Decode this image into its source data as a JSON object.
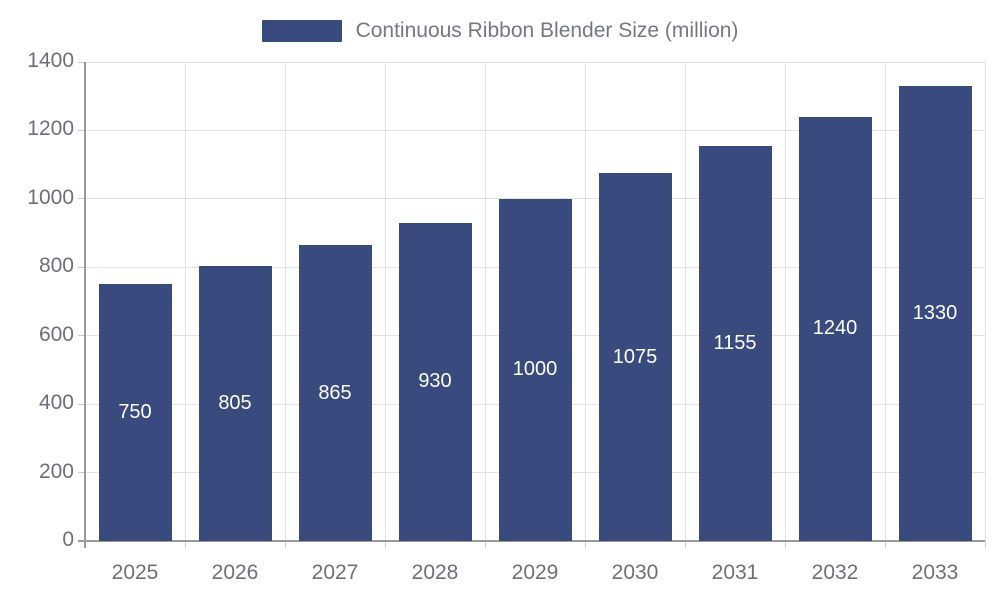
{
  "legend": {
    "label": "Continuous Ribbon Blender Size (million)"
  },
  "chart_data": {
    "type": "bar",
    "title": "",
    "series_name": "Continuous Ribbon Blender Size (million)",
    "categories": [
      "2025",
      "2026",
      "2027",
      "2028",
      "2029",
      "2030",
      "2031",
      "2032",
      "2033"
    ],
    "values": [
      750,
      805,
      865,
      930,
      1000,
      1075,
      1155,
      1240,
      1330
    ],
    "xlabel": "",
    "ylabel": "",
    "ylim": [
      0,
      1400
    ],
    "yticks": [
      0,
      200,
      400,
      600,
      800,
      1000,
      1200,
      1400
    ],
    "grid": true,
    "legend_position": "top",
    "bar_label_position": "inside-center",
    "colors": {
      "bar": "#394A7F",
      "bar_label": "#FFFFFF",
      "axis_label": "#6E7079",
      "legend_text": "#75797F",
      "gridline": "#E2E2E7",
      "tick": "#CCCCCC",
      "axis_line": "#999999",
      "background": "#FFFFFF"
    }
  }
}
